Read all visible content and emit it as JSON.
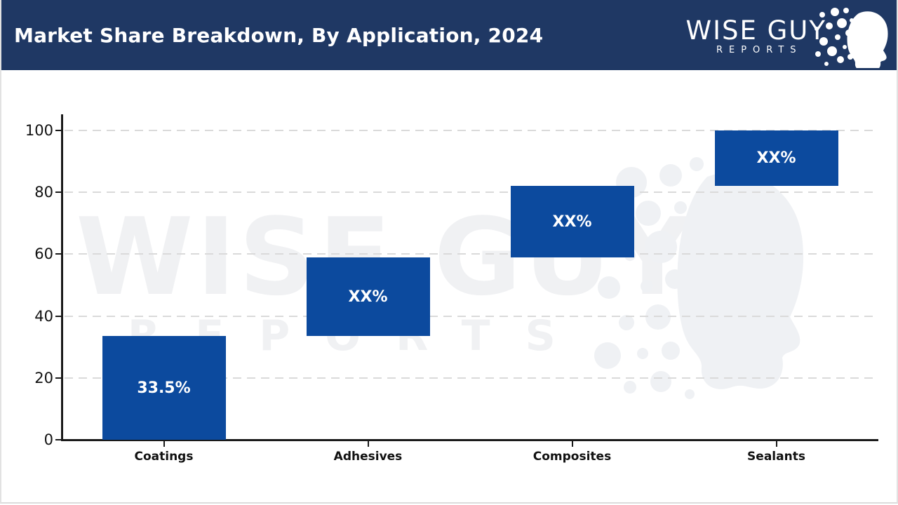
{
  "header": {
    "title": "Market Share Breakdown, By Application, 2024",
    "logo_line1": "WISE GUY",
    "logo_line2": "REPORTS"
  },
  "watermark": {
    "line1": "WISE GUY",
    "line2": "REPORTS"
  },
  "chart_data": {
    "type": "bar",
    "subtype": "waterfall",
    "title": "Market Share Breakdown, By Application, 2024",
    "categories": [
      "Coatings",
      "Adhesives",
      "Composites",
      "Sealants"
    ],
    "segments": [
      {
        "category": "Coatings",
        "start": 0,
        "end": 33.5,
        "label": "33.5%"
      },
      {
        "category": "Adhesives",
        "start": 33.5,
        "end": 59,
        "label": "XX%"
      },
      {
        "category": "Composites",
        "start": 59,
        "end": 82,
        "label": "XX%"
      },
      {
        "category": "Sealants",
        "start": 82,
        "end": 100,
        "label": "XX%"
      }
    ],
    "y_ticks": [
      0,
      20,
      40,
      60,
      80,
      100
    ],
    "ylim": [
      0,
      105
    ],
    "xlabel": "",
    "ylabel": "",
    "grid": "dashed-horizontal",
    "legend": "none",
    "bar_color": "#0c4a9e",
    "bar_label_color": "#ffffff"
  },
  "colors": {
    "header_bg": "#1f3864",
    "bar": "#0c4a9e",
    "grid": "#dadada",
    "axis": "#1a1a1a",
    "watermark": "#f0f1f3"
  }
}
